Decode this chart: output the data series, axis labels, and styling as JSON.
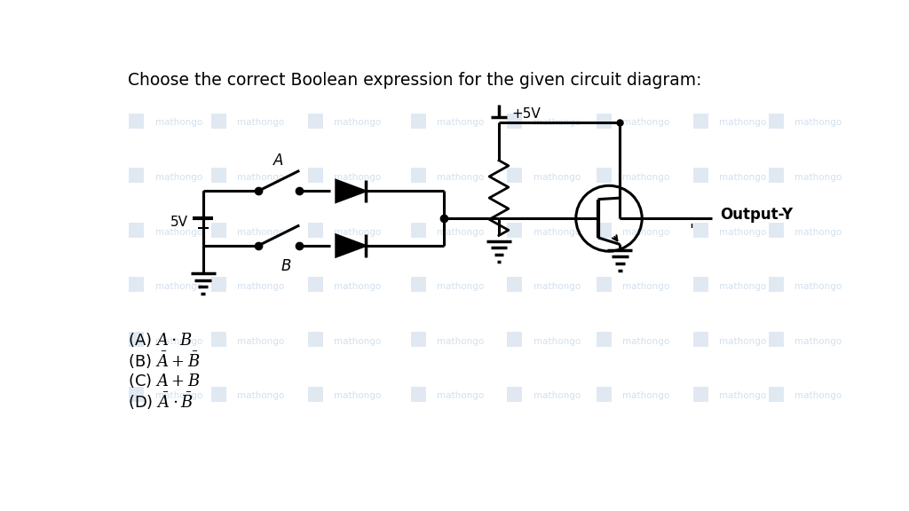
{
  "title": "Choose the correct Boolean expression for the given circuit diagram:",
  "title_fontsize": 13.5,
  "bg_color": "#ffffff",
  "watermark_color": "#c8d8e8",
  "watermark_text": "mathongo",
  "circuit": {
    "battery_label": "5V",
    "vcc_label": "+5V",
    "output_label": "Output-Y",
    "input_A_label": "A",
    "input_B_label": "B"
  },
  "option_texts": [
    "(A) $A \\cdot B$",
    "(B) $\\bar{A} + \\bar{B}$",
    "(C) $A + B$",
    "(D) $\\bar{A} \\cdot \\bar{B}$"
  ]
}
